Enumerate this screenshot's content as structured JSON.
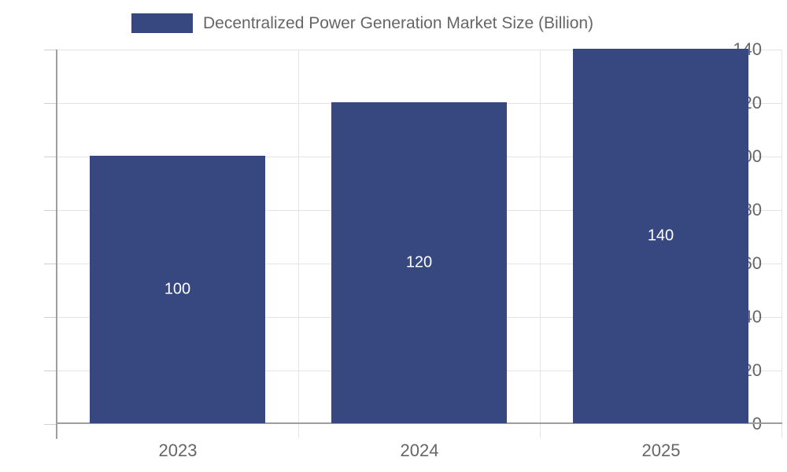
{
  "chart_data": {
    "type": "bar",
    "title": "Decentralized Power Generation Market Size (Billion)",
    "legend_entries": [
      "Decentralized Power Generation Market Size (Billion)"
    ],
    "legend_position": "top",
    "categories": [
      "2023",
      "2024",
      "2025"
    ],
    "series": [
      {
        "name": "Decentralized Power Generation Market Size (Billion)",
        "values": [
          100,
          120,
          140
        ]
      }
    ],
    "value_labels_shown": true,
    "xlabel": "",
    "ylabel": "",
    "ylim": [
      0,
      140
    ],
    "yticks": [
      0,
      20,
      40,
      60,
      80,
      100,
      120,
      140
    ],
    "grid": true,
    "colors": {
      "bar": "#374880",
      "value_label": "#ffffff",
      "axis_text": "#666666",
      "legend_text": "#666666",
      "axis_line": "#9e9e9e",
      "grid_line": "#e4e4e4",
      "tick_line": "#cfcfcf",
      "background": "#ffffff"
    }
  }
}
